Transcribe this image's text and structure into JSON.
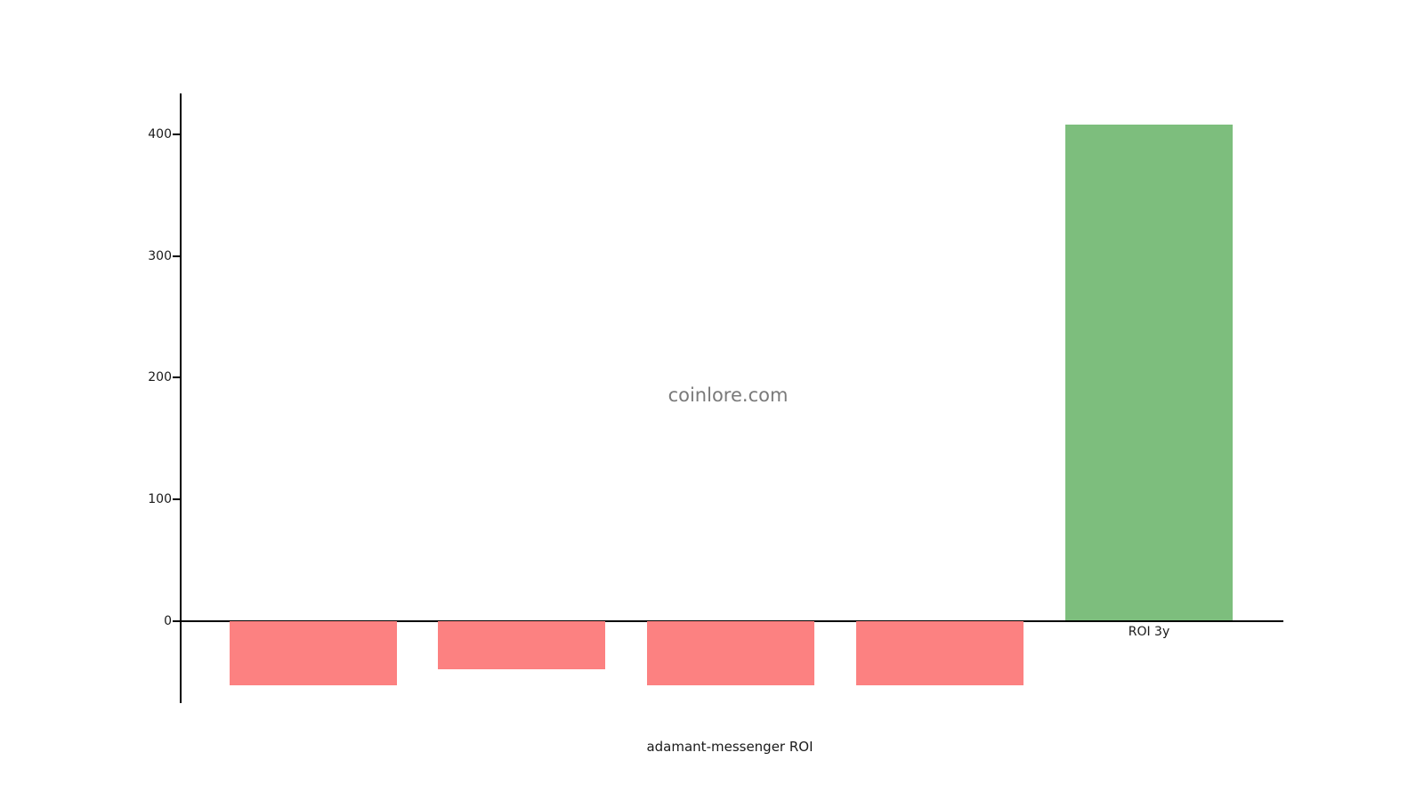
{
  "chart_data": {
    "type": "bar",
    "categories": [
      "",
      "",
      "",
      "",
      "ROI 3y"
    ],
    "values": [
      -53,
      -40,
      -53,
      -53,
      408
    ],
    "title": "adamant-messenger ROI",
    "watermark": "coinlore.com",
    "xlabel": "",
    "ylabel": "",
    "y_ticks": [
      0,
      100,
      200,
      300,
      400
    ],
    "ylim": [
      -68,
      433
    ],
    "grid": false,
    "legend": "none",
    "colors": {
      "positive_bar": "#7dbe7d",
      "negative_bar": "#fc8181",
      "axis": "#000000",
      "tick_label_text": "#1a1a1a",
      "title_text": "#1a1a1a",
      "watermark_text": "#7a7a7a",
      "background": "#ffffff"
    }
  }
}
